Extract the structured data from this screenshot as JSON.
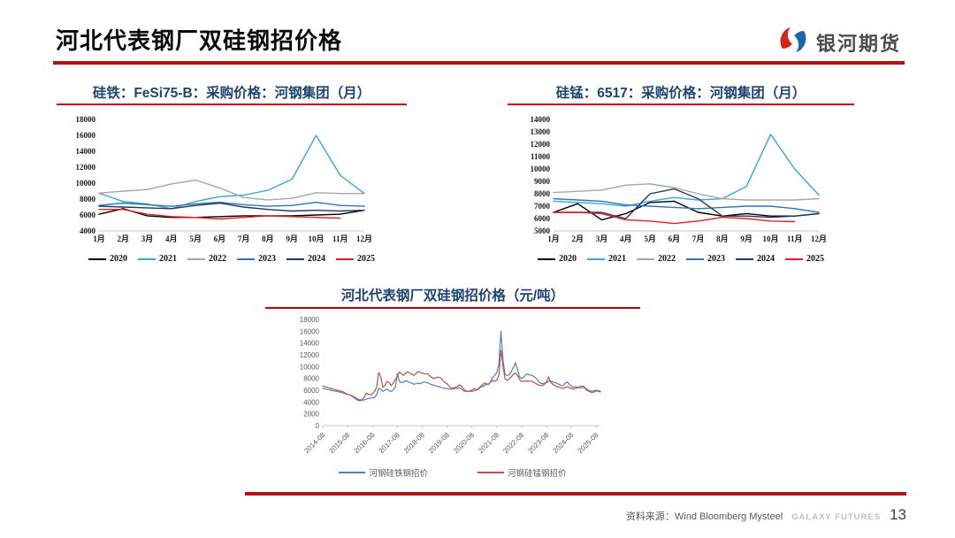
{
  "theme": {
    "accent_dark_red": "#b01513",
    "accent_red": "#c00000",
    "title_blue": "#1f4472",
    "logo_blue": "#1c63b0",
    "logo_red": "#d6231c"
  },
  "header": {
    "title": "河北代表钢厂双硅钢招价格"
  },
  "logo": {
    "text": "银河期货"
  },
  "footer": {
    "source": "资料来源：Wind Bloomberg Mysteel",
    "brand": "GALAXY FUTURES",
    "page": "13"
  },
  "chart_data": [
    {
      "id": "fesi",
      "type": "line",
      "title": "硅铁：FeSi75-B：采购价格：河钢集团（月）",
      "ylim": [
        4000,
        18000
      ],
      "y_ticks": [
        18000,
        16000,
        14000,
        12000,
        10000,
        8000,
        6000,
        4000
      ],
      "categories": [
        "1月",
        "2月",
        "3月",
        "4月",
        "5月",
        "6月",
        "7月",
        "8月",
        "9月",
        "10月",
        "11月",
        "12月"
      ],
      "grid": false,
      "legend_position": "bottom",
      "series": [
        {
          "name": "2020",
          "color": "#000000",
          "values": [
            6100,
            6800,
            5900,
            5700,
            5700,
            5800,
            5900,
            5900,
            5900,
            6000,
            6100,
            6600
          ]
        },
        {
          "name": "2021",
          "color": "#35a8dc",
          "values": [
            8750,
            7700,
            7400,
            6800,
            7700,
            8300,
            8500,
            9100,
            10500,
            16000,
            11000,
            8700
          ]
        },
        {
          "name": "2022",
          "color": "#a6a6a6",
          "values": [
            8750,
            9000,
            9200,
            9900,
            10400,
            9400,
            8200,
            7900,
            8100,
            8800,
            8700,
            8700
          ]
        },
        {
          "name": "2023",
          "color": "#2e75b6",
          "values": [
            7200,
            7500,
            7300,
            7100,
            7400,
            7600,
            7300,
            7100,
            7200,
            7600,
            7200,
            7100
          ]
        },
        {
          "name": "2024",
          "color": "#203864",
          "values": [
            7100,
            7000,
            6900,
            6800,
            7200,
            7500,
            7000,
            6700,
            6500,
            6600,
            6500,
            6600
          ]
        },
        {
          "name": "2025",
          "color": "#e02020",
          "values": [
            6700,
            6700,
            6100,
            5800,
            5700,
            5500,
            5700,
            5900,
            5800,
            5700,
            5600
          ]
        }
      ]
    },
    {
      "id": "simn",
      "type": "line",
      "title": "硅锰：6517：采购价格：河钢集团（月）",
      "ylim": [
        5000,
        14000
      ],
      "y_ticks": [
        14000,
        13000,
        12000,
        11000,
        10000,
        9000,
        8000,
        7000,
        6000,
        5000
      ],
      "categories": [
        "1月",
        "2月",
        "3月",
        "4月",
        "5月",
        "6月",
        "7月",
        "8月",
        "9月",
        "10月",
        "11月",
        "12月"
      ],
      "grid": false,
      "legend_position": "bottom",
      "series": [
        {
          "name": "2020",
          "color": "#000000",
          "values": [
            6500,
            7200,
            5900,
            6400,
            7300,
            7400,
            6500,
            6200,
            6400,
            6200,
            6200,
            6400
          ]
        },
        {
          "name": "2021",
          "color": "#35a8dc",
          "values": [
            7400,
            7300,
            7200,
            7000,
            7400,
            7700,
            7500,
            7600,
            8600,
            12800,
            10000,
            7900
          ]
        },
        {
          "name": "2022",
          "color": "#a6a6a6",
          "values": [
            8100,
            8200,
            8300,
            8700,
            8800,
            8500,
            8000,
            7600,
            7500,
            7500,
            7500,
            7600
          ]
        },
        {
          "name": "2023",
          "color": "#2e75b6",
          "values": [
            7600,
            7500,
            7400,
            7100,
            7000,
            6900,
            6800,
            6900,
            7000,
            7000,
            6800,
            6500
          ]
        },
        {
          "name": "2024",
          "color": "#203864",
          "values": [
            6500,
            6500,
            6500,
            6000,
            8000,
            8400,
            7600,
            6200,
            6200,
            6100,
            6200,
            6400
          ]
        },
        {
          "name": "2025",
          "color": "#e02020",
          "values": [
            6500,
            6500,
            6400,
            5900,
            5800,
            5600,
            5800,
            6100,
            6000,
            5800,
            5750
          ]
        }
      ]
    },
    {
      "id": "hist",
      "type": "line",
      "title": "河北代表钢厂双硅钢招价格（元/吨）",
      "ylim": [
        0,
        18000
      ],
      "y_ticks": [
        18000,
        16000,
        14000,
        12000,
        10000,
        8000,
        6000,
        4000,
        2000,
        0
      ],
      "x_count": 135,
      "x_tick_every": 12,
      "x_tick_labels": [
        "2014-08",
        "2015-08",
        "2016-08",
        "2017-08",
        "2018-08",
        "2019-08",
        "2020-08",
        "2021-08",
        "2022-08",
        "2023-08",
        "2024-08",
        "2025-08"
      ],
      "grid": false,
      "legend_position": "bottom",
      "series": [
        {
          "name": "河钢硅铁钢招价",
          "color": "#4f81bd",
          "values": [
            6300,
            6250,
            6150,
            6100,
            6000,
            5900,
            5850,
            5800,
            5700,
            5600,
            5500,
            5400,
            5300,
            5200,
            5100,
            4900,
            4700,
            4500,
            4400,
            4300,
            4350,
            4500,
            4600,
            4650,
            4700,
            4800,
            5200,
            6300,
            6200,
            5800,
            6000,
            6200,
            5900,
            5800,
            6000,
            6500,
            8800,
            7500,
            7300,
            7400,
            7600,
            7500,
            7300,
            7200,
            7000,
            7100,
            7200,
            7100,
            7300,
            7400,
            7300,
            7200,
            7000,
            6900,
            6800,
            6700,
            6600,
            6500,
            6400,
            6300,
            6300,
            6200,
            6200,
            6200,
            6300,
            6300,
            6400,
            6200,
            5900,
            5800,
            5800,
            5800,
            5800,
            5900,
            6000,
            6100,
            6500,
            6600,
            6800,
            7000,
            7000,
            7500,
            8200,
            8500,
            9000,
            10500,
            16000,
            11000,
            8700,
            8500,
            8600,
            9200,
            9800,
            10700,
            9500,
            8300,
            8000,
            8200,
            8700,
            8700,
            8600,
            8500,
            8300,
            8000,
            7600,
            7200,
            7100,
            7200,
            7300,
            7500,
            7600,
            7400,
            7300,
            7200,
            7000,
            6800,
            6800,
            7200,
            7400,
            7000,
            6700,
            6500,
            6600,
            6500,
            6600,
            6700,
            6700,
            6100,
            5900,
            5700,
            5600,
            5700,
            5900,
            5800,
            5700
          ]
        },
        {
          "name": "河钢硅锰钢招价",
          "color": "#c0504d",
          "values": [
            6700,
            6600,
            6500,
            6400,
            6300,
            6200,
            6100,
            6000,
            5900,
            5800,
            5700,
            5500,
            5300,
            5200,
            5000,
            4800,
            4500,
            4300,
            4200,
            4400,
            4800,
            5500,
            5300,
            5200,
            5400,
            5800,
            6500,
            9000,
            8200,
            6500,
            6800,
            7500,
            7300,
            6800,
            7200,
            7800,
            8300,
            9100,
            8800,
            8500,
            8900,
            9100,
            8900,
            8700,
            8500,
            8800,
            9200,
            9000,
            8900,
            8800,
            8800,
            8700,
            8300,
            8100,
            8000,
            8200,
            8200,
            8100,
            7600,
            7300,
            7100,
            6700,
            6300,
            6400,
            6500,
            6600,
            6900,
            6700,
            6200,
            5900,
            5800,
            5900,
            6000,
            6300,
            6100,
            6200,
            6600,
            6900,
            7200,
            7100,
            7000,
            7400,
            7700,
            7500,
            7700,
            8600,
            12800,
            10000,
            7900,
            7700,
            7900,
            8300,
            8700,
            8900,
            8500,
            7800,
            7500,
            7500,
            7600,
            7500,
            7600,
            7500,
            7300,
            7100,
            6900,
            6800,
            6800,
            7000,
            7400,
            8300,
            7400,
            7000,
            6800,
            6600,
            6500,
            6400,
            6300,
            6500,
            6600,
            6400,
            6300,
            6200,
            6300,
            6400,
            6500,
            6400,
            6500,
            6300,
            6000,
            5900,
            5800,
            5900,
            6000,
            5900,
            5800
          ]
        }
      ]
    }
  ]
}
